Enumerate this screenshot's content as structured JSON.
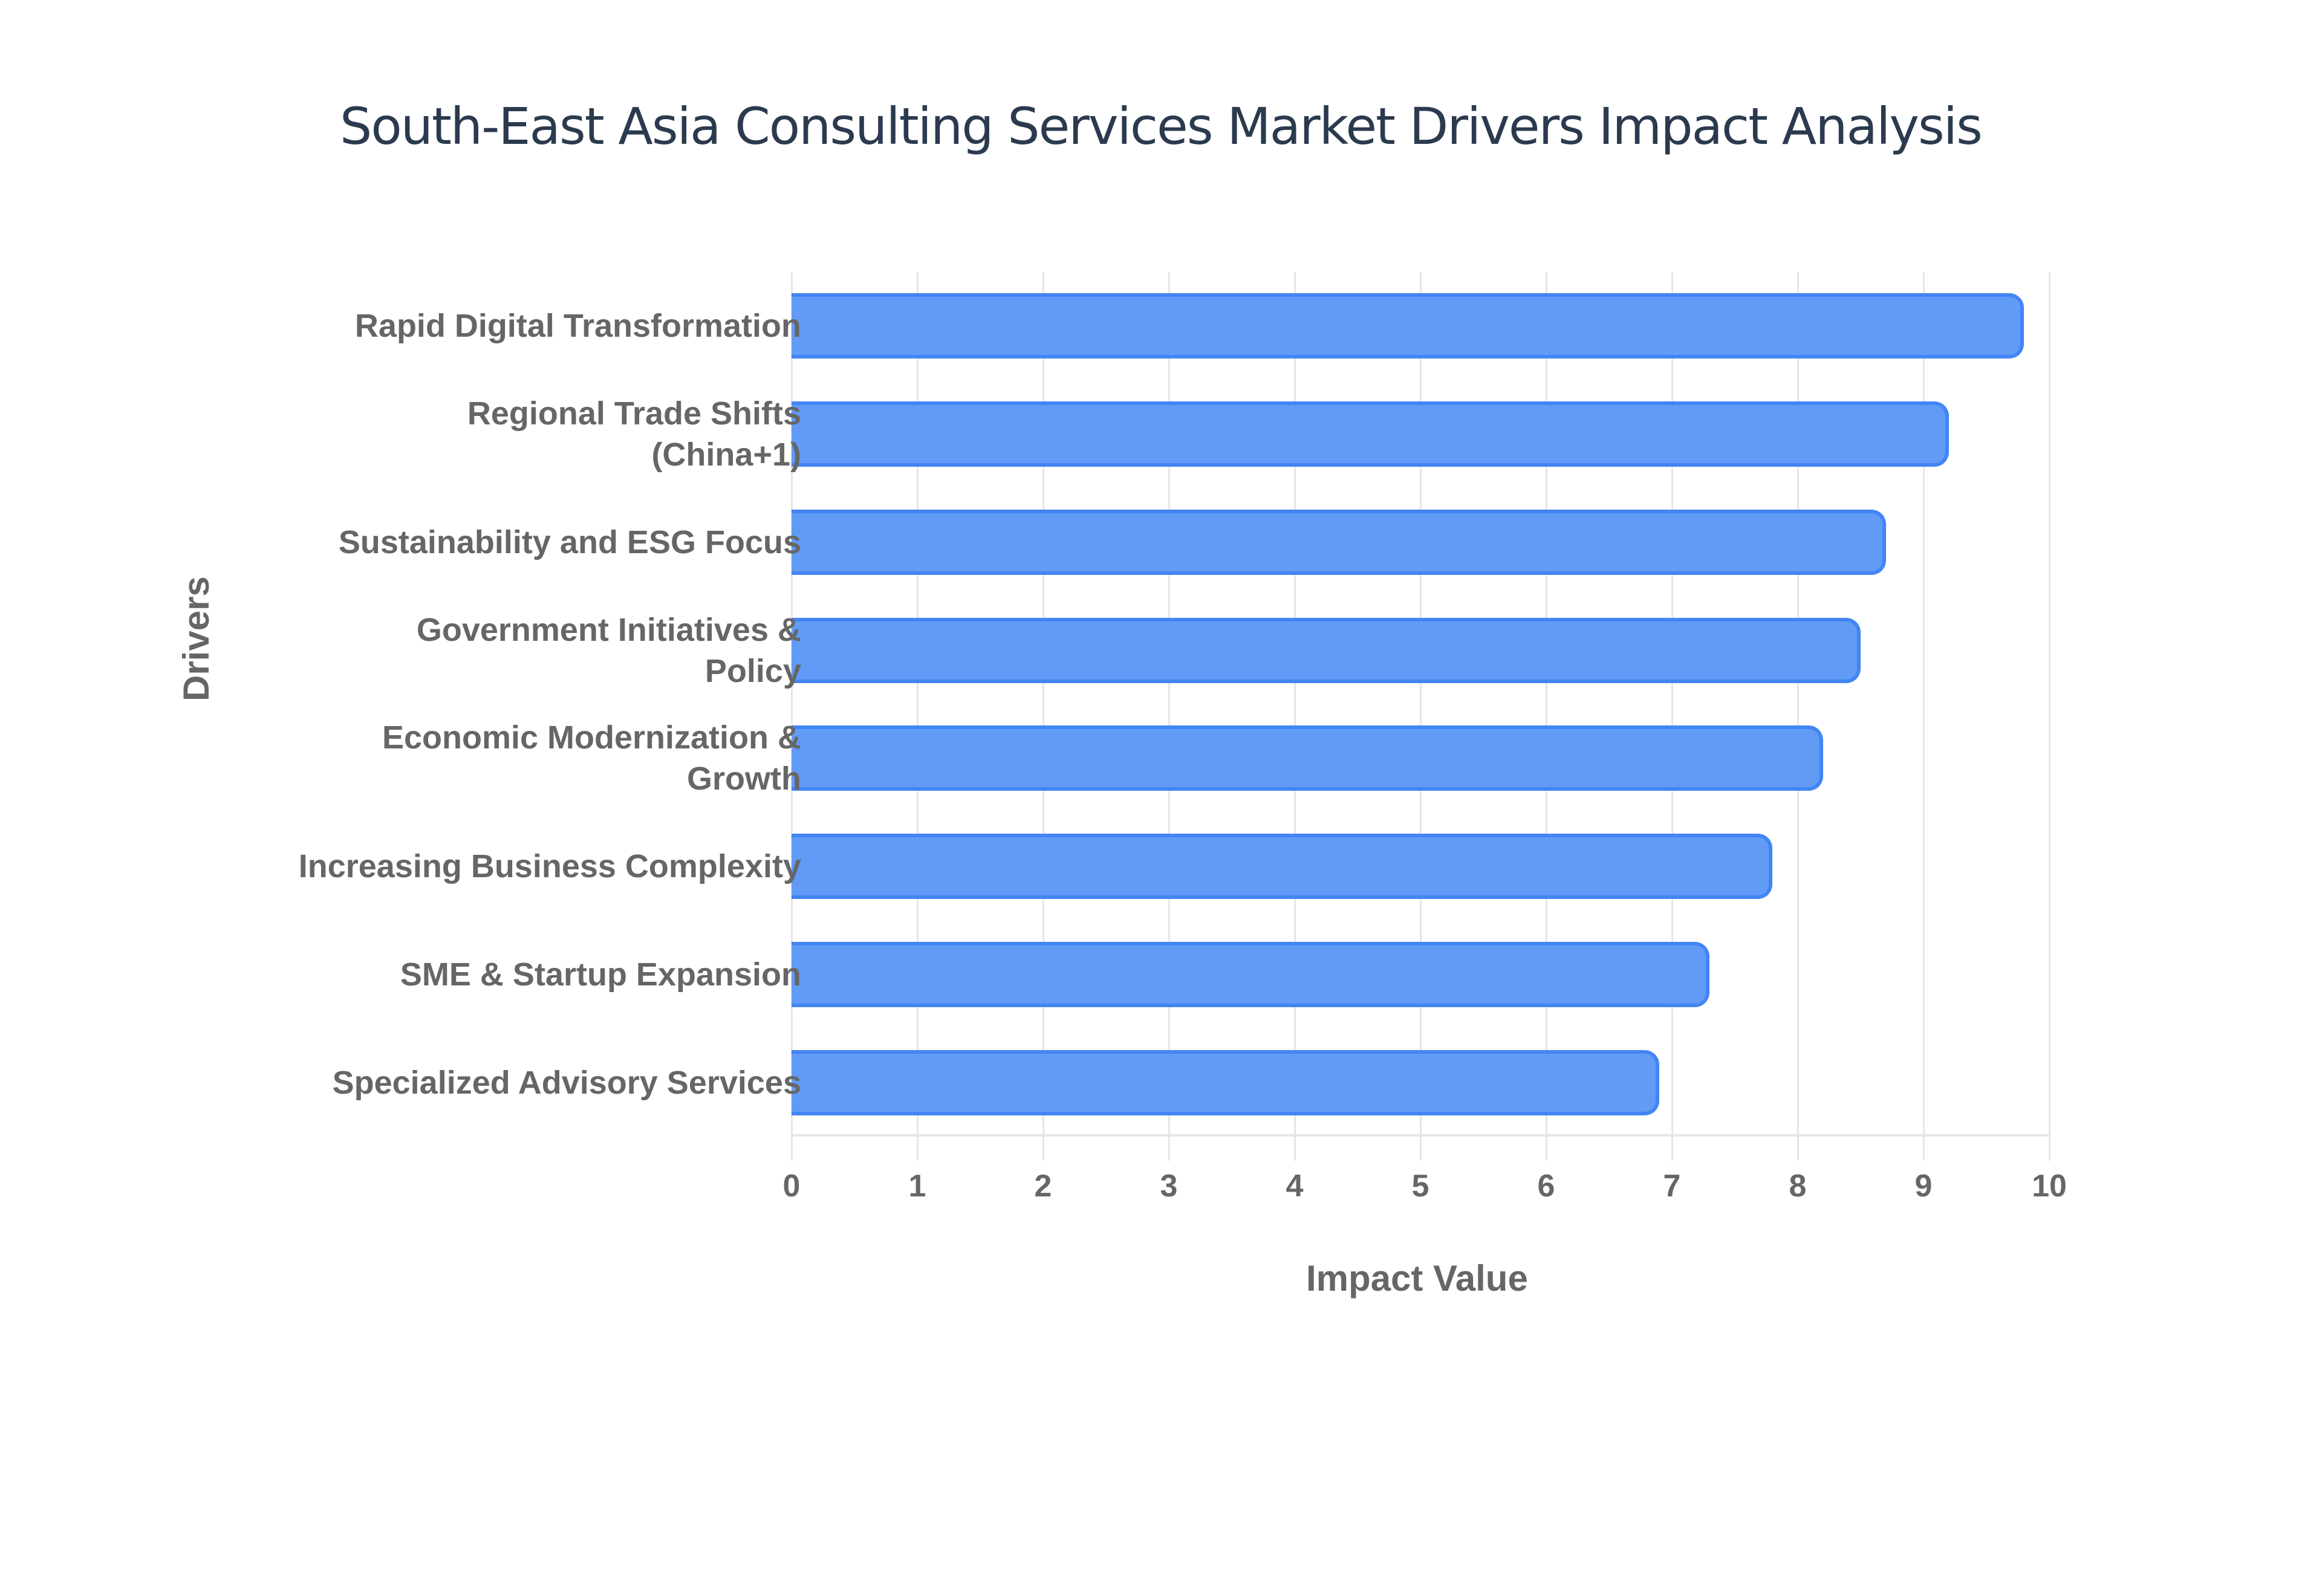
{
  "chart_data": {
    "type": "bar",
    "orientation": "horizontal",
    "title": "South-East Asia Consulting Services Market Drivers Impact Analysis",
    "xlabel": "Impact Value",
    "ylabel": "Drivers",
    "categories": [
      "Rapid Digital Transformation",
      "Regional Trade Shifts (China+1)",
      "Sustainability and ESG Focus",
      "Government Initiatives & Policy",
      "Economic Modernization & Growth",
      "Increasing Business Complexity",
      "SME & Startup Expansion",
      "Specialized Advisory Services"
    ],
    "values": [
      9.8,
      9.2,
      8.7,
      8.5,
      8.2,
      7.8,
      7.3,
      6.9
    ],
    "xlim": [
      0,
      10
    ],
    "xticks": [
      "0",
      "1",
      "2",
      "3",
      "4",
      "5",
      "6",
      "7",
      "8",
      "9",
      "10"
    ],
    "grid": true,
    "legend": "none",
    "colors": {
      "bar_fill": "#629bf6",
      "bar_border": "#4285f4",
      "title": "#2b3a4e",
      "axis_text": "#666666",
      "grid": "#e6e6e6"
    }
  },
  "labels_display": [
    [
      "Rapid Digital Transformation"
    ],
    [
      "Regional Trade Shifts",
      "(China+1)"
    ],
    [
      "Sustainability and ESG Focus"
    ],
    [
      "Government Initiatives &",
      "Policy"
    ],
    [
      "Economic Modernization &",
      "Growth"
    ],
    [
      "Increasing Business Complexity"
    ],
    [
      "SME & Startup Expansion"
    ],
    [
      "Specialized Advisory Services"
    ]
  ]
}
